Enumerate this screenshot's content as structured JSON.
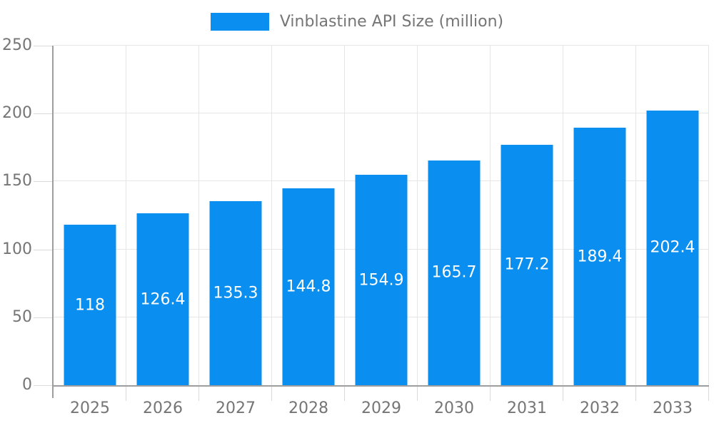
{
  "chart_data": {
    "type": "bar",
    "title": "Vinblastine API Size (million)",
    "legend_entries": [
      "Vinblastine API Size (million)"
    ],
    "categories": [
      "2025",
      "2026",
      "2027",
      "2028",
      "2029",
      "2030",
      "2031",
      "2032",
      "2033"
    ],
    "values": [
      118,
      126.4,
      135.3,
      144.8,
      154.9,
      165.7,
      177.2,
      189.4,
      202.4
    ],
    "xlabel": "",
    "ylabel": "",
    "ylim": [
      0,
      250
    ],
    "yticks": [
      0,
      50,
      100,
      150,
      200,
      250
    ],
    "grid": true,
    "legend_position": "top",
    "bar_color": "#0a8ff0",
    "value_label_color": "#ffffff",
    "axis_color": "#9e9e9e",
    "grid_color": "#e6e6e6",
    "tick_color": "#d9d9d9",
    "tick_label_color": "#757575"
  }
}
